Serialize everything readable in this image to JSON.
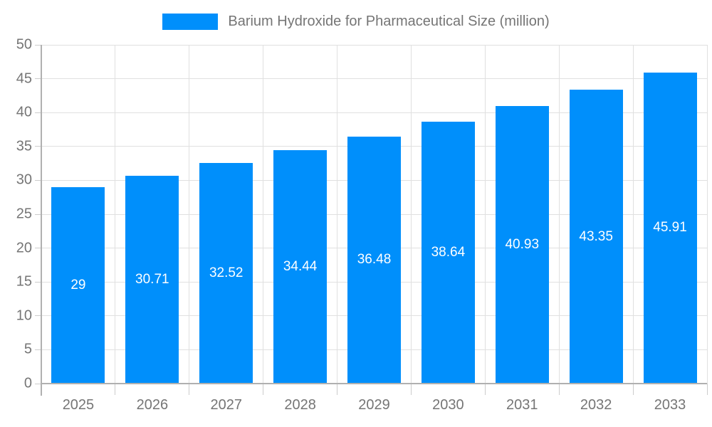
{
  "chart_data": {
    "type": "bar",
    "title": "Barium Hydroxide for Pharmaceutical Size (million)",
    "categories": [
      "2025",
      "2026",
      "2027",
      "2028",
      "2029",
      "2030",
      "2031",
      "2032",
      "2033"
    ],
    "values": [
      29,
      30.71,
      32.52,
      34.44,
      36.48,
      38.64,
      40.93,
      43.35,
      45.91
    ],
    "xlabel": "",
    "ylabel": "",
    "ylim": [
      0,
      50
    ],
    "ytick_step": 5,
    "grid": true,
    "legend_position": "top",
    "bar_labels_inside": true,
    "colors": {
      "bar": "#008FFB",
      "bar_label": "#ffffff",
      "axis_text": "#757575",
      "title_text": "#757575",
      "gridline": "#e0e0e0",
      "tick": "#cccccc",
      "axis_line": "#b0b0b0"
    }
  }
}
